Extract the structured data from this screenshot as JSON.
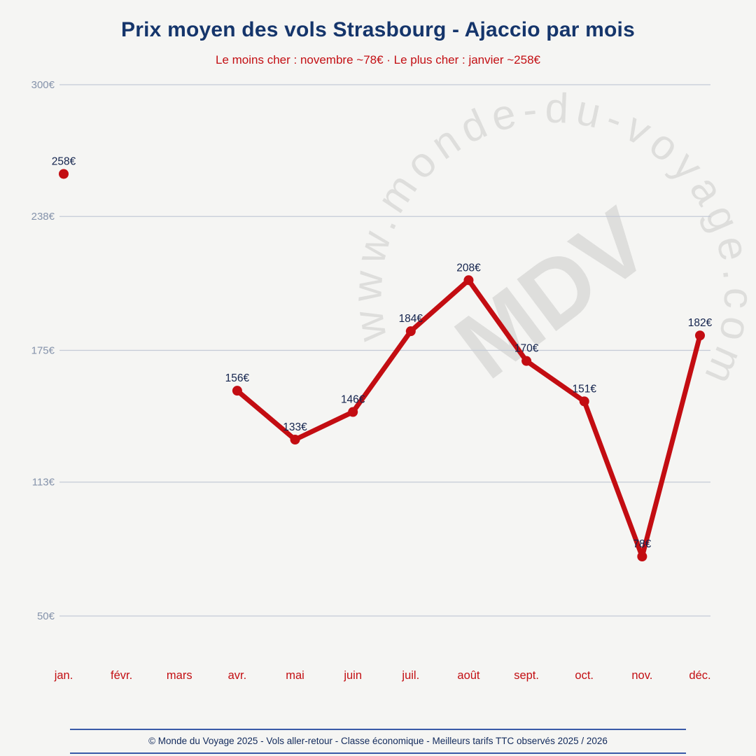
{
  "watermark": {
    "ring_text": "www.monde-du-voyage.com",
    "center_text": "MDV"
  },
  "footer": {
    "text": "© Monde du Voyage 2025 - Vols aller-retour - Classe économique - Meilleurs tarifs TTC observés 2025 / 2026"
  },
  "colors": {
    "title": "#15356b",
    "subtitle": "#c30f13",
    "line": "#c30d12",
    "point": "#c30d12",
    "point_label": "#13234d",
    "axis_y": "#8593ab",
    "axis_x": "#c30f13",
    "grid": "#c4cad6",
    "background": "#f5f5f3",
    "footer_text": "#122a5c",
    "footer_line": "#3a5aa8",
    "watermark": "#8f8f8f"
  },
  "chart_data": {
    "type": "line",
    "title": "Prix moyen des vols Strasbourg - Ajaccio par mois",
    "subtitle": "Le moins cher : novembre ~78€ · Le plus cher : janvier ~258€",
    "categories": [
      "jan.",
      "févr.",
      "mars",
      "avr.",
      "mai",
      "juin",
      "juil.",
      "août",
      "sept.",
      "oct.",
      "nov.",
      "déc."
    ],
    "values": [
      258,
      null,
      null,
      156,
      133,
      146,
      184,
      208,
      170,
      151,
      78,
      182
    ],
    "point_labels": [
      "258€",
      null,
      null,
      "156€",
      "133€",
      "146€",
      "184€",
      "208€",
      "170€",
      "151€",
      "78€",
      "182€"
    ],
    "yticks": [
      300,
      238,
      175,
      113,
      50
    ],
    "ytick_labels": [
      "300€",
      "238€",
      "175€",
      "113€",
      "50€"
    ],
    "ylim": [
      50,
      300
    ],
    "xlabel": "",
    "ylabel": "",
    "grid": "horizontal",
    "legend": "none",
    "notes": "jan. point is isolated (no line to it); févr. and mars have no data"
  }
}
